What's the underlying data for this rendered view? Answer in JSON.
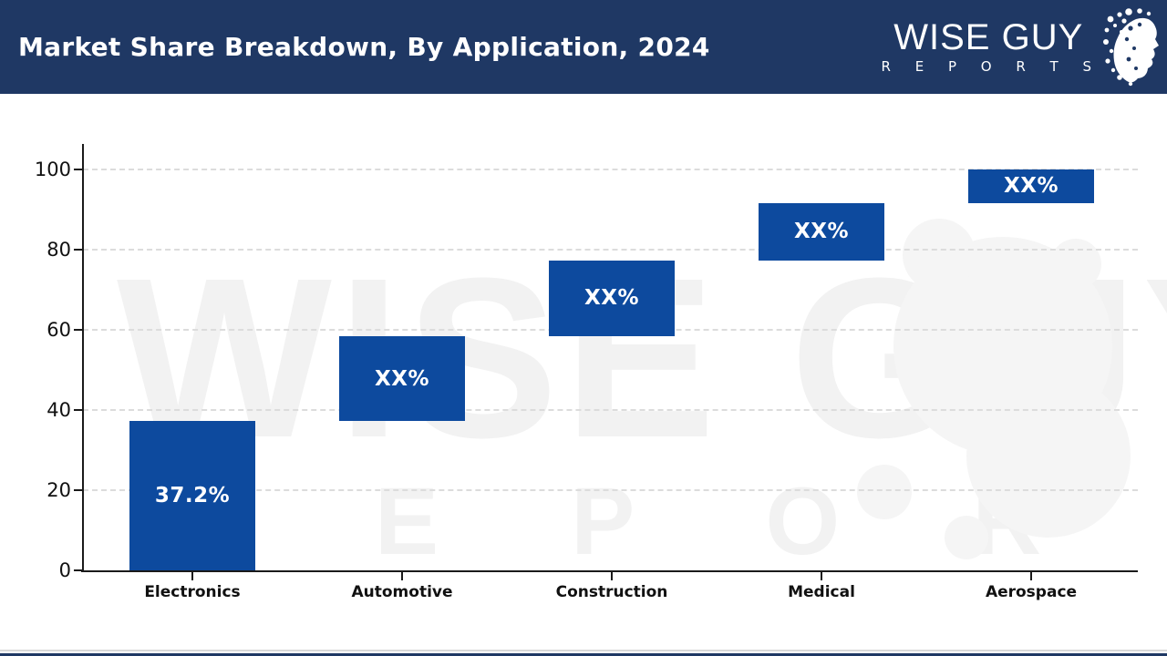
{
  "header": {
    "title": "Market Share Breakdown, By Application, 2024",
    "logo": {
      "line1": "WISE GUY",
      "line2": "R E P O R T S"
    }
  },
  "watermark": {
    "line1": "WISE GUY",
    "line2": "R E P O R T S"
  },
  "chart_data": {
    "type": "bar",
    "subtype": "waterfall",
    "title": "Market Share Breakdown, By Application, 2024",
    "categories": [
      "Electronics",
      "Automotive",
      "Construction",
      "Medical",
      "Aerospace"
    ],
    "segments": [
      {
        "category": "Electronics",
        "start": 0,
        "end": 37.2,
        "label": "37.2%"
      },
      {
        "category": "Automotive",
        "start": 37.2,
        "end": 58.4,
        "label": "XX%"
      },
      {
        "category": "Construction",
        "start": 58.4,
        "end": 77.3,
        "label": "XX%"
      },
      {
        "category": "Medical",
        "start": 77.3,
        "end": 91.6,
        "label": "XX%"
      },
      {
        "category": "Aerospace",
        "start": 91.6,
        "end": 100,
        "label": "XX%"
      }
    ],
    "xlabel": "",
    "ylabel": "",
    "ylim": [
      0,
      100
    ],
    "yticks": [
      0,
      20,
      40,
      60,
      80,
      100
    ],
    "grid": "horizontal-dashed",
    "legend": "none",
    "bar_color": "#0d4a9e",
    "bar_label_color": "#ffffff"
  },
  "colors": {
    "header_bg": "#1f3864",
    "bar": "#0d4a9e",
    "axis": "#1a1a1a",
    "grid": "#dcdcdc",
    "bottom_strip": "#1f3864"
  }
}
